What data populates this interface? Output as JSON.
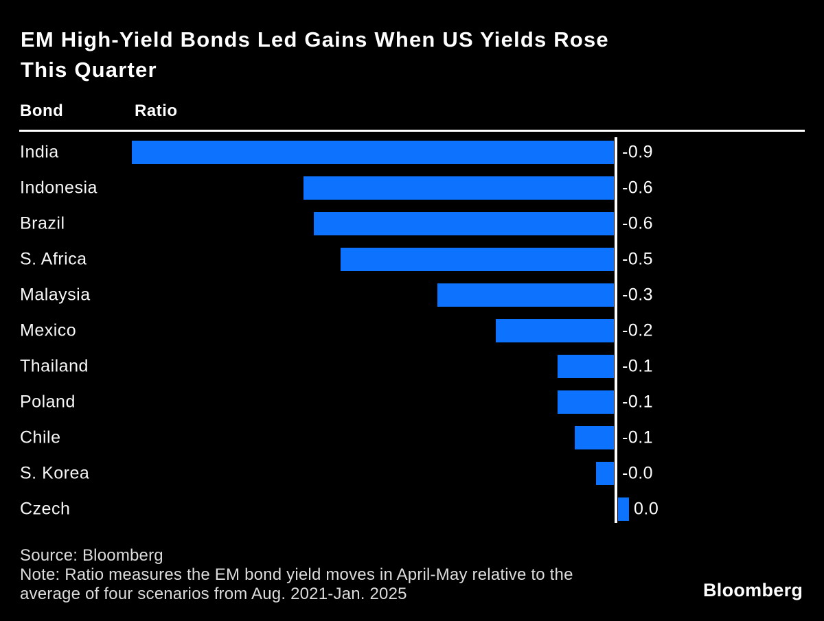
{
  "header": {
    "title_line1": "EM High-Yield Bonds Led Gains When US Yields Rose",
    "title_line2": "This Quarter"
  },
  "columns": {
    "bond": "Bond",
    "ratio": "Ratio"
  },
  "chart_data": {
    "type": "bar",
    "orientation": "horizontal",
    "title": "EM High-Yield Bonds Led Gains When US Yields Rose This Quarter",
    "categories": [
      "India",
      "Indonesia",
      "Brazil",
      "S. Africa",
      "Malaysia",
      "Mexico",
      "Thailand",
      "Poland",
      "Chile",
      "S. Korea",
      "Czech"
    ],
    "values": [
      -0.9,
      -0.58,
      -0.56,
      -0.51,
      -0.33,
      -0.22,
      -0.105,
      -0.105,
      -0.073,
      -0.033,
      0.021
    ],
    "value_labels": [
      "-0.9",
      "-0.6",
      "-0.6",
      "-0.5",
      "-0.3",
      "-0.2",
      "-0.1",
      "-0.1",
      "-0.1",
      "-0.0",
      "0.0"
    ],
    "xlabel": "Ratio",
    "ylabel": "Bond",
    "xlim": [
      -0.9,
      0.35
    ],
    "zero_line": true,
    "grid": false,
    "legend": false,
    "bar_color": "#0d73ff"
  },
  "footer": {
    "source": "Source: Bloomberg",
    "note_line1": "Note: Ratio measures the EM bond yield moves in April-May relative to the",
    "note_line2": "average of four scenarios from Aug. 2021-Jan. 2025",
    "logo": "Bloomberg"
  },
  "colors": {
    "background": "#000000",
    "bar": "#0d73ff",
    "text": "#ffffff",
    "footer_text": "#dcdcdc"
  }
}
